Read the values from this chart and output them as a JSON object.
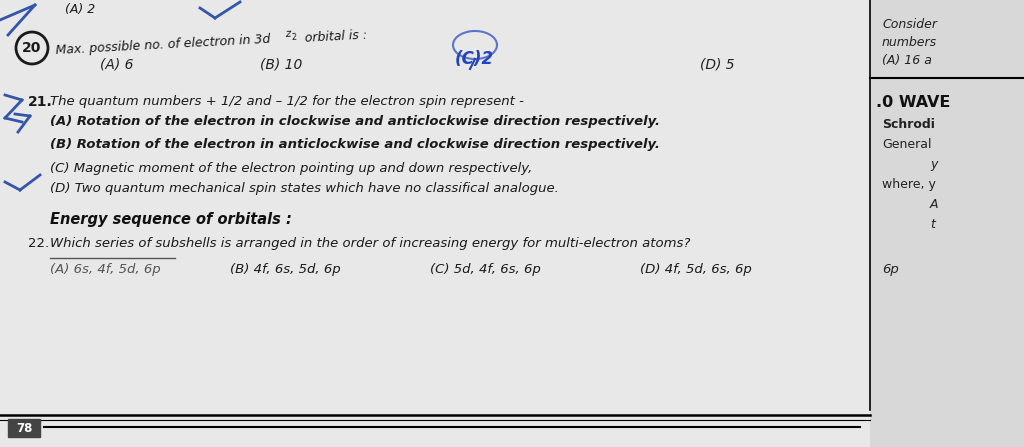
{
  "background_color": "#dcdcdc",
  "page_number": "78",
  "right_col_texts": [
    "Consider",
    "numbers",
    "(A) 16 a"
  ],
  "right_col_bold": ".0 WAVE",
  "right_col_sub": [
    "Schrodi",
    "General",
    "y",
    "where, y",
    "A",
    "t"
  ],
  "top_left": "(A) 2",
  "q20_label": "20",
  "q20_text": "Max. possible no. of electron in 3d",
  "q20_sup_z": "z",
  "q20_sup_2": "2",
  "q20_text2": " orbital is :",
  "q20_A": "(A) 6",
  "q20_B": "(B) 10",
  "q20_C": "(C)2",
  "q20_D": "(D) 5",
  "q21_label": "21.",
  "q21_intro": "The quantum numbers + 1/2 and – 1/2 for the electron spin represent -",
  "q21_A": "(A) Rotation of the electron in clockwise and anticlockwise direction respectively.",
  "q21_B": "(B) Rotation of the electron in anticlockwise and clockwise direction respectively.",
  "q21_C": "(C) Magnetic moment of the electron pointing up and down respectively,",
  "q21_D": "(D) Two quantum mechanical spin states which have no classifical analogue.",
  "section_label": "Energy sequence of orbitals :",
  "q22_label": "22.",
  "q22_text": "Which series of subshells is arranged in the order of increasing energy for multi-electron atoms?",
  "q22_A": "(A) 6s, 4f, 5d, 6p",
  "q22_B": "(B) 4f, 6s, 5d, 6p",
  "q22_C": "(C) 5d, 4f, 6s, 6p",
  "q22_D": "(D) 4f, 5d, 6s, 6p"
}
